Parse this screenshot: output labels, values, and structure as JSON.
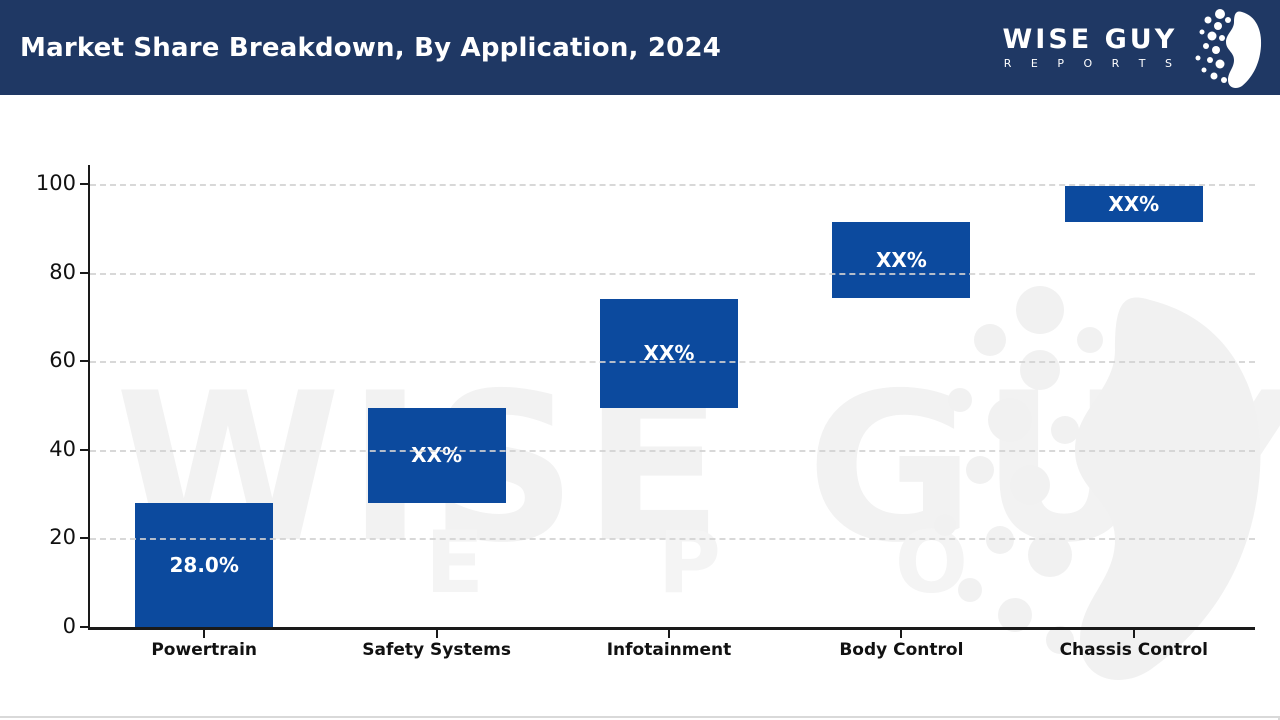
{
  "header": {
    "title": "Market Share Breakdown, By Application, 2024",
    "brand_line1": "WISE GUY",
    "brand_line2": "R E P O R T S",
    "bg_color": "#1f3864"
  },
  "watermark": {
    "line1": "WISE GUY",
    "line2": "R E P O R T S"
  },
  "chart_data": {
    "type": "bar",
    "subtype": "floating-waterfall",
    "title": "Market Share Breakdown, By Application, 2024",
    "categories": [
      "Powertrain",
      "Safety Systems",
      "Infotainment",
      "Body Control",
      "Chassis Control"
    ],
    "segments": [
      {
        "category": "Powertrain",
        "start": 0,
        "end": 28,
        "label": "28.0%"
      },
      {
        "category": "Safety Systems",
        "start": 28,
        "end": 49.5,
        "label": "XX%"
      },
      {
        "category": "Infotainment",
        "start": 49.5,
        "end": 74,
        "label": "XX%"
      },
      {
        "category": "Body Control",
        "start": 74.3,
        "end": 91.4,
        "label": "XX%"
      },
      {
        "category": "Chassis Control",
        "start": 91.4,
        "end": 99.6,
        "label": "XX%"
      }
    ],
    "yticks": [
      0,
      20,
      40,
      60,
      80,
      100
    ],
    "ylim": [
      0,
      104.5
    ],
    "xlabel": "",
    "ylabel": "",
    "bar_color": "#0c4a9e",
    "bar_label_color": "#ffffff",
    "grid": "horizontal-dashed",
    "legend": "none"
  }
}
